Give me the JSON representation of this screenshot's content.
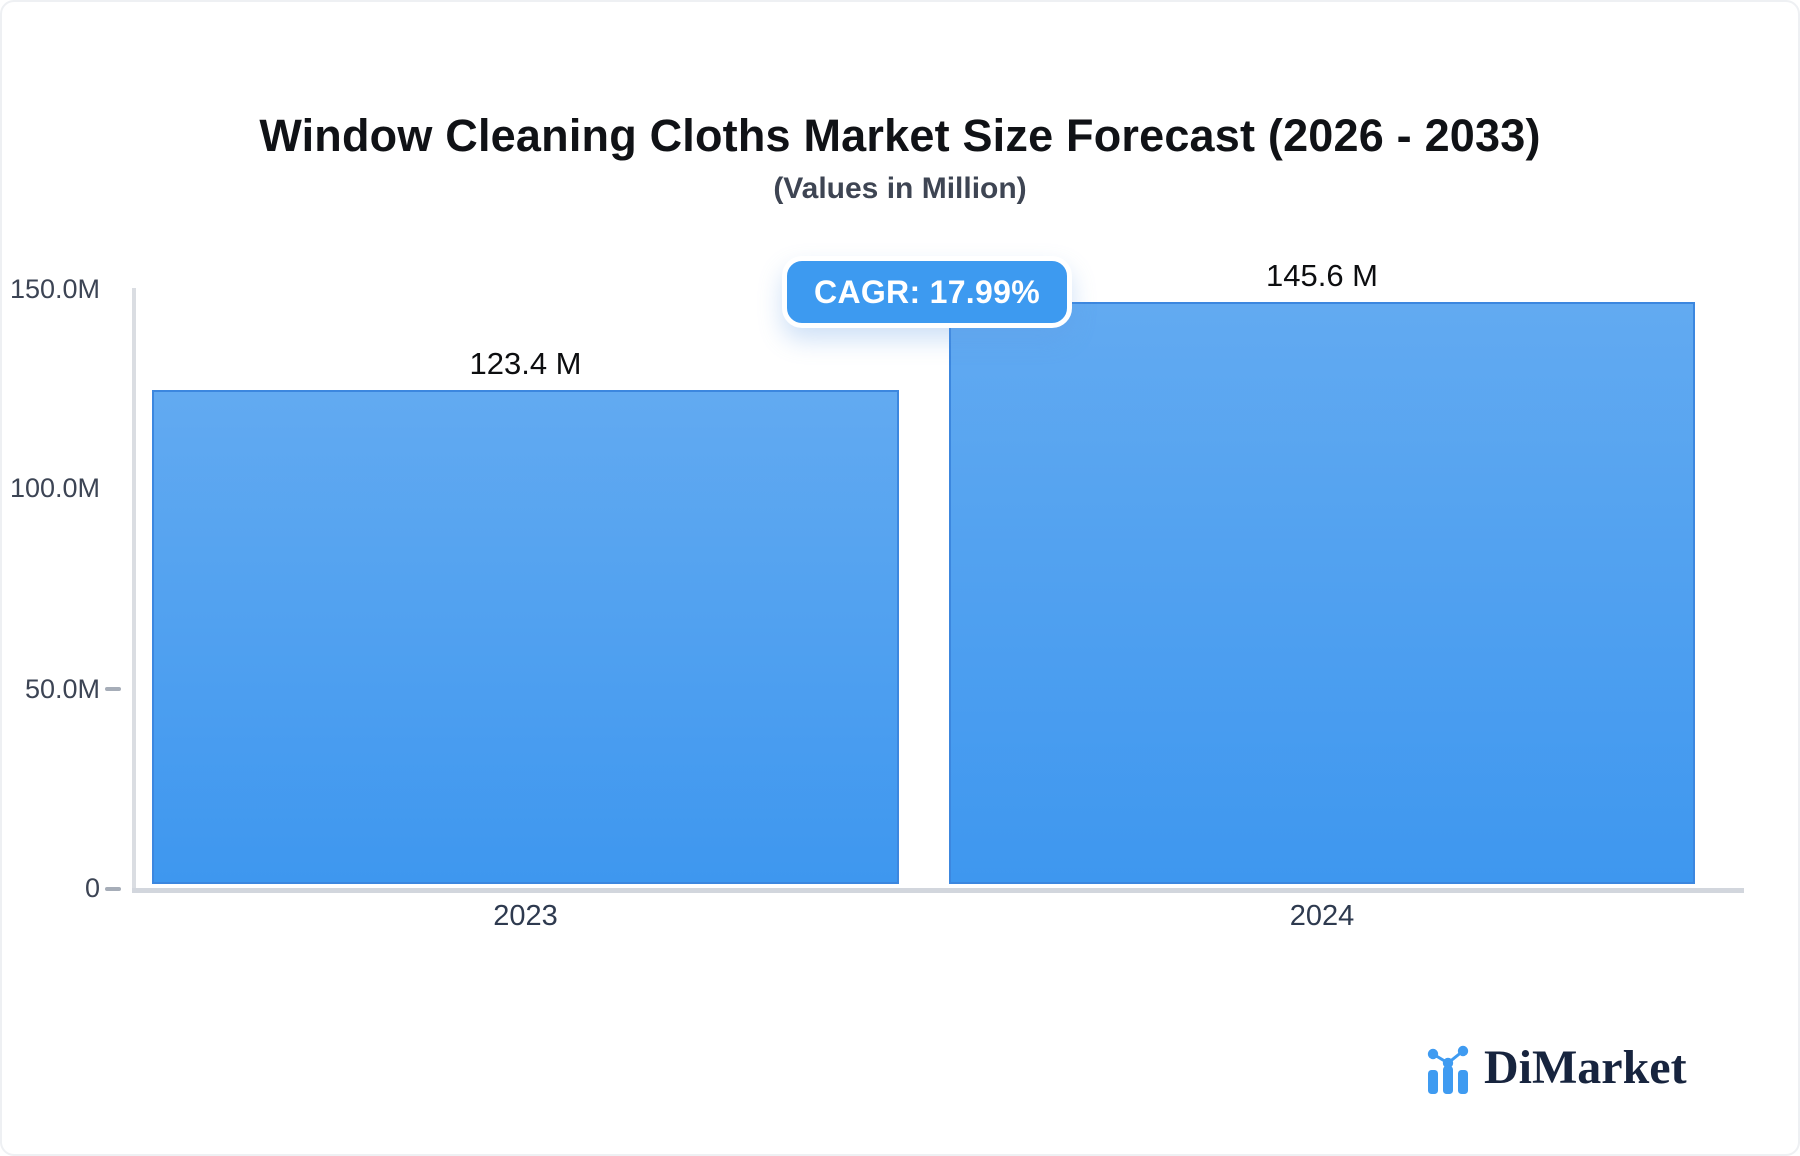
{
  "header": {
    "title": "Window Cleaning Cloths Market Size Forecast (2026 - 2033)",
    "subtitle": "(Values in Million)"
  },
  "badge": {
    "label": "CAGR: 17.99%"
  },
  "chart_data": {
    "type": "bar",
    "title": "Window Cleaning Cloths Market Size Forecast (2026 - 2033)",
    "subtitle": "(Values in Million)",
    "unit": "Million",
    "categories": [
      "2023",
      "2024"
    ],
    "values": [
      123.4,
      145.6
    ],
    "value_labels": [
      "123.4 M",
      "145.6 M"
    ],
    "cagr": "17.99%",
    "y_axis": {
      "range": [
        0,
        150
      ],
      "ticks": [
        "150.0M",
        "100.0M",
        "50.0M",
        "0"
      ]
    },
    "grid": false,
    "legend": false
  },
  "colors": {
    "bar_gradient_top": "#62aaf1",
    "bar_gradient_bottom": "#3e97ef",
    "bar_border": "#3c87df",
    "badge_bg": "#3d9af0",
    "axis_line": "#d2d6dd",
    "logo_blue": "#3f9bf1",
    "logo_navy": "#17243e"
  },
  "logo": {
    "brand": "DiMarket"
  }
}
